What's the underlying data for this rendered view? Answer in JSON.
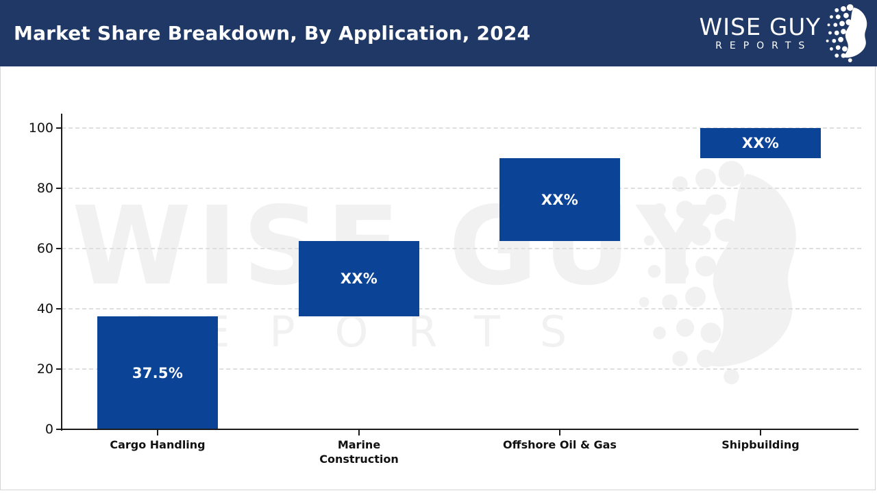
{
  "header": {
    "title": "Market Share Breakdown, By Application, 2024",
    "background_color": "#1f3866",
    "logo": {
      "line1": "WISE GUY",
      "line2": "REPORTS"
    }
  },
  "watermark": {
    "line1": "WISE GUY",
    "line2": "REPORTS"
  },
  "chart_data": {
    "type": "bar",
    "subtype": "floating-waterfall",
    "title": "Market Share Breakdown, By Application, 2024",
    "categories": [
      "Cargo Handling",
      "Marine Construction",
      "Offshore Oil & Gas",
      "Shipbuilding"
    ],
    "tick_lines": [
      [
        "Cargo Handling"
      ],
      [
        "Marine",
        "Construction"
      ],
      [
        "Offshore Oil & Gas"
      ],
      [
        "Shipbuilding"
      ]
    ],
    "segments": [
      {
        "category": "Cargo Handling",
        "start": 0,
        "end": 37.5,
        "value": 37.5,
        "label": "37.5%"
      },
      {
        "category": "Marine Construction",
        "start": 37.5,
        "end": 62.5,
        "value": 25,
        "label": "XX%"
      },
      {
        "category": "Offshore Oil & Gas",
        "start": 62.5,
        "end": 90,
        "value": 27.5,
        "label": "XX%"
      },
      {
        "category": "Shipbuilding",
        "start": 90,
        "end": 100,
        "value": 10,
        "label": "XX%"
      }
    ],
    "ylim": [
      0,
      100
    ],
    "yticks": [
      0,
      20,
      40,
      60,
      80,
      100
    ],
    "xlabel": "",
    "ylabel": "",
    "grid": "horizontal-dashed",
    "legend": "none",
    "bar_color": "#0b4397",
    "bar_label_color": "#ffffff",
    "axis_color": "#1a1a1a",
    "grid_color": "#dedede"
  }
}
